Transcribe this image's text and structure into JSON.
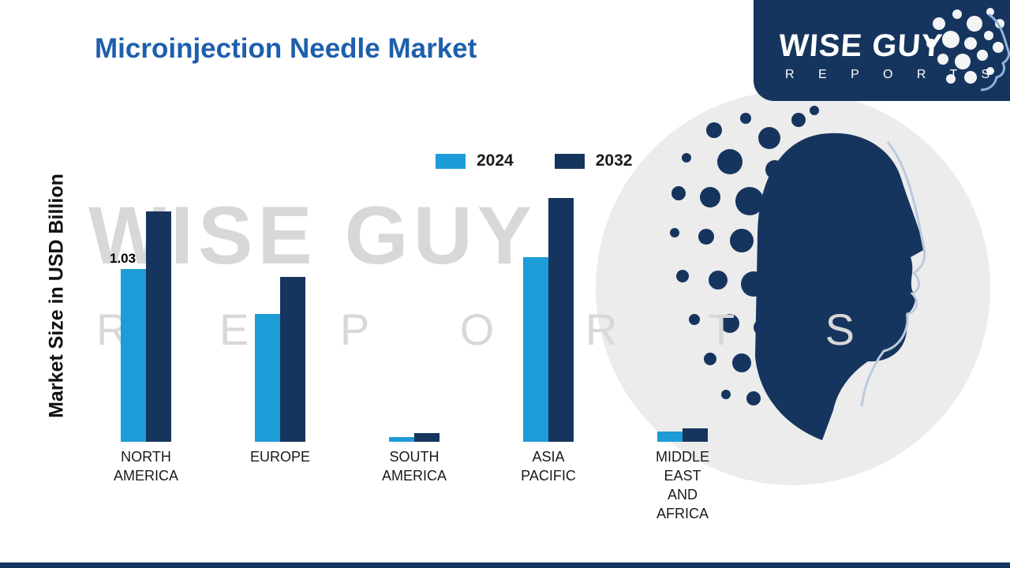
{
  "logo": {
    "line1": "WISE GUY",
    "line2": "R E P O R T S"
  },
  "watermark": {
    "line1": "WISE GUY",
    "line2": "R E P O R T S"
  },
  "colors": {
    "navy": "#16355e",
    "bar_2024": "#1e9cd7",
    "bar_2032": "#16355e",
    "title_blue": "#1d5fad",
    "watermark_gray": "#d8d8d8",
    "circle_gray": "#ececec"
  },
  "chart_data": {
    "type": "bar",
    "title": "Microinjection Needle Market",
    "ylabel": "Market Size in USD Billion",
    "xlabel": "",
    "categories": [
      "NORTH AMERICA",
      "EUROPE",
      "SOUTH AMERICA",
      "ASIA PACIFIC",
      "MIDDLE EAST AND AFRICA"
    ],
    "series": [
      {
        "name": "2024",
        "color": "#1e9cd7",
        "values": [
          1.03,
          0.76,
          0.03,
          1.1,
          0.06
        ],
        "data_labels": [
          "1.03",
          "",
          "",
          "",
          ""
        ]
      },
      {
        "name": "2032",
        "color": "#16355e",
        "values": [
          1.37,
          0.98,
          0.05,
          1.45,
          0.08
        ],
        "data_labels": [
          "",
          "",
          "",
          "",
          ""
        ]
      }
    ],
    "ylim": [
      0,
      1.55
    ],
    "grid": false,
    "legend_position": "top"
  }
}
